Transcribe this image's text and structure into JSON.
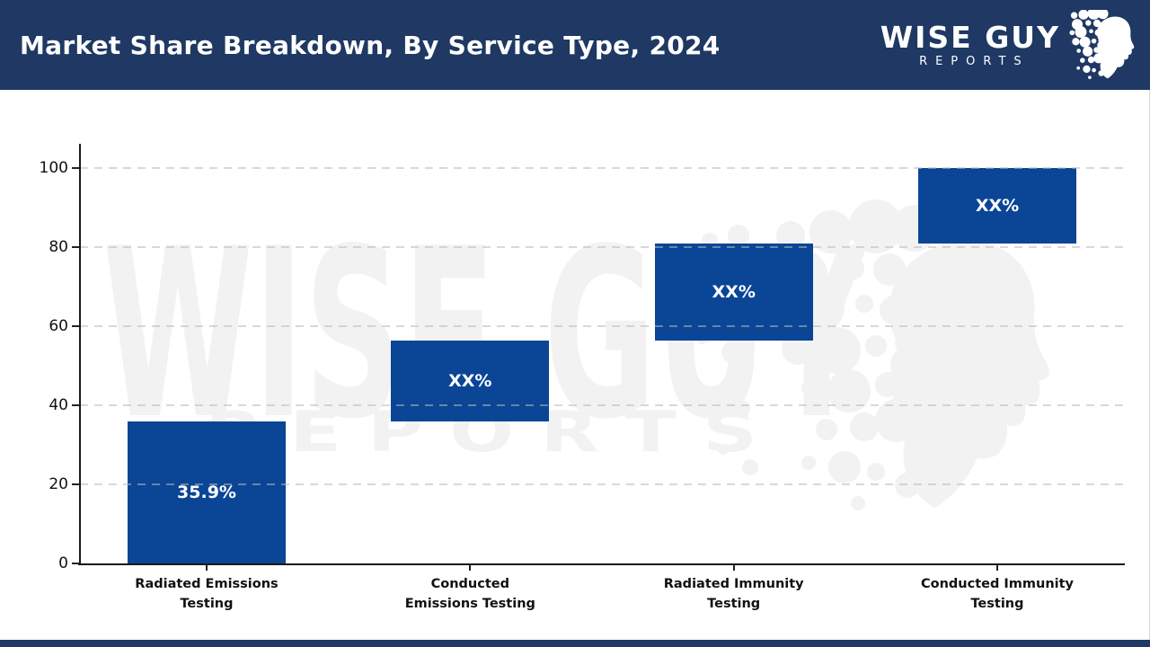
{
  "header": {
    "title": "Market Share Breakdown, By Service Type, 2024",
    "logo": {
      "name_line": "WISE GUY",
      "sub_line": "REPORTS"
    }
  },
  "watermark": {
    "line1": "WISE GUY",
    "line2": "R E P O R T S"
  },
  "chart_data": {
    "type": "bar",
    "subtype": "waterfall",
    "title": "Market Share Breakdown, By Service Type, 2024",
    "xlabel": "",
    "ylabel": "",
    "ylim": [
      0,
      105
    ],
    "yticks": [
      0,
      20,
      40,
      60,
      80,
      100
    ],
    "grid": "horizontal-dashed",
    "legend": "none",
    "bar_color": "#0a4596",
    "bar_label_color": "#ffffff",
    "categories": [
      "Radiated Emissions Testing",
      "Conducted Emissions Testing",
      "Radiated Immunity Testing",
      "Conducted Immunity Testing"
    ],
    "category_label_lines": [
      [
        "Radiated Emissions",
        "Testing"
      ],
      [
        "Conducted",
        "Emissions Testing"
      ],
      [
        "Radiated Immunity",
        "Testing"
      ],
      [
        "Conducted Immunity",
        "Testing"
      ]
    ],
    "segments": [
      {
        "category": "Radiated Emissions Testing",
        "start": 0,
        "end": 35.9,
        "label": "35.9%"
      },
      {
        "category": "Conducted Emissions Testing",
        "start": 35.9,
        "end": 56.3,
        "label": "XX%"
      },
      {
        "category": "Radiated Immunity Testing",
        "start": 56.3,
        "end": 81.0,
        "label": "XX%"
      },
      {
        "category": "Conducted Immunity Testing",
        "start": 81.0,
        "end": 100.0,
        "label": "XX%"
      }
    ]
  },
  "colors": {
    "header_bg": "#1f3864",
    "footer_bg": "#1f3864",
    "bar": "#0a4596",
    "grid": "#d9d9d9",
    "axis": "#1a1a1a",
    "watermark": "#f2f2f3"
  }
}
